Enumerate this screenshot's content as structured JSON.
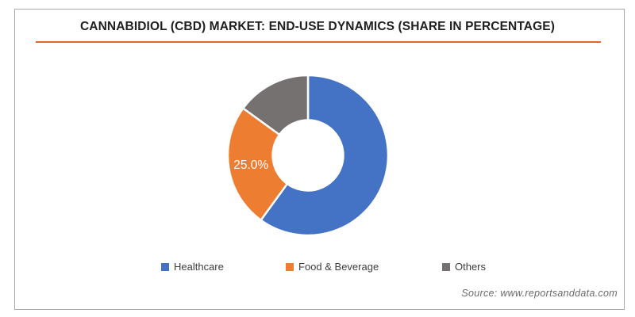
{
  "frame": {
    "border_color": "#ababab",
    "background": "#ffffff"
  },
  "header": {
    "title": "CANNABIDIOL (CBD) MARKET: END-USE DYNAMICS (SHARE IN PERCENTAGE)",
    "underline_color": "#e8622c"
  },
  "chart_data": {
    "type": "pie",
    "subtype": "donut",
    "title": "CANNABIDIOL (CBD) MARKET: END-USE DYNAMICS (SHARE IN PERCENTAGE)",
    "categories": [
      "Healthcare",
      "Food & Beverage",
      "Others"
    ],
    "values": [
      60,
      25,
      15
    ],
    "unit": "%",
    "colors": [
      "#4472c4",
      "#ed7d31",
      "#757171"
    ],
    "slice_labels": [
      "",
      "25.0%",
      ""
    ],
    "slice_label_color": "#ffffff",
    "start_angle_deg": 0,
    "direction": "clockwise",
    "donut_hole_ratio": 0.44,
    "legend_position": "bottom",
    "gap_stroke_color": "#ffffff"
  },
  "footer": {
    "source": "Source: www.reportsanddata.com"
  }
}
